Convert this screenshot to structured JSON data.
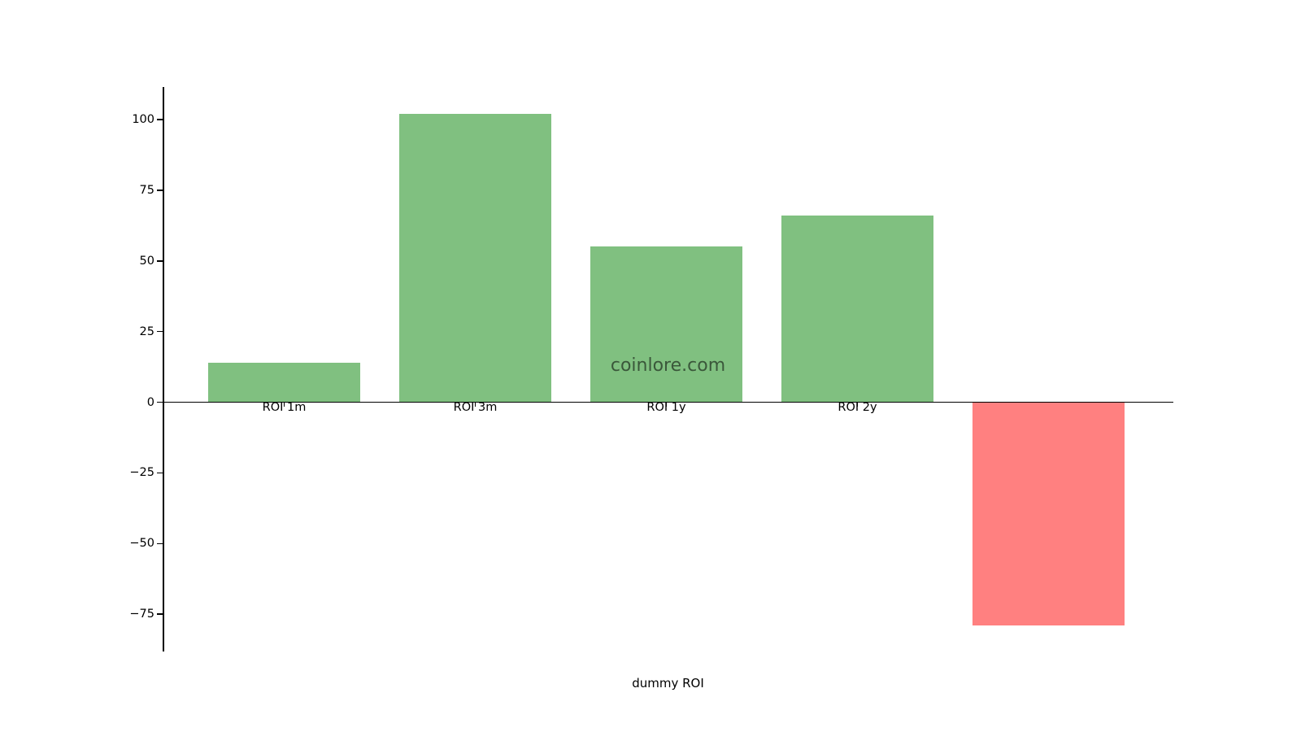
{
  "watermark": "coinlore.com",
  "chart_data": {
    "type": "bar",
    "title": "",
    "xlabel": "dummy ROI",
    "ylabel": "",
    "categories": [
      "ROI 1m",
      "ROI 3m",
      "ROI 1y",
      "ROI 2y",
      ""
    ],
    "values": [
      14,
      102,
      55,
      66,
      -79
    ],
    "yticks": [
      100,
      75,
      50,
      25,
      0,
      -25,
      -50,
      -75
    ],
    "ytick_labels": [
      "100",
      "75",
      "50",
      "25",
      "0",
      "−25",
      "−50",
      "−75"
    ],
    "ylim": [
      -88,
      111
    ],
    "grid": false,
    "legend": "none",
    "colors": {
      "positive_bar": "#80c080",
      "negative_bar": "#ff8080",
      "axis": "#000000",
      "watermark_text": "rgba(0,0,0,0.55)"
    }
  }
}
